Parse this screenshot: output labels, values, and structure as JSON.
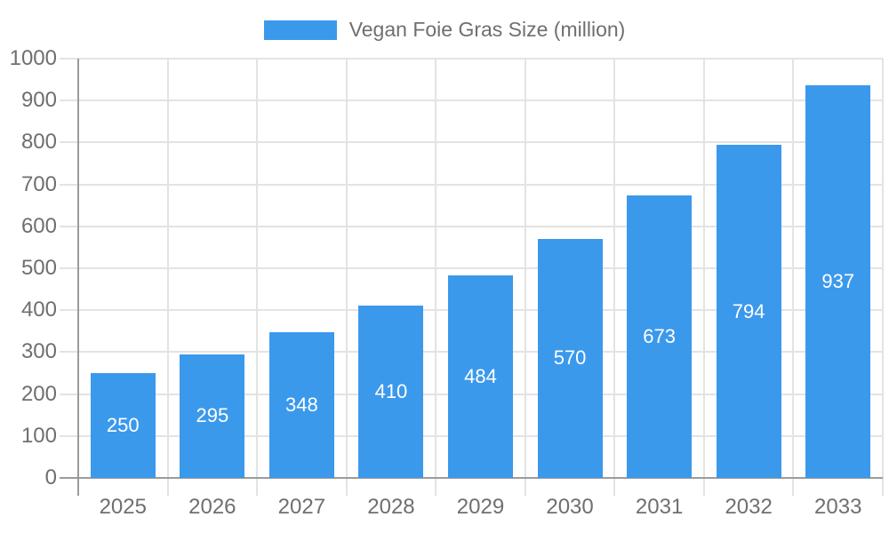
{
  "chart_data": {
    "type": "bar",
    "title": "Vegan Foie Gras Size (million)",
    "categories": [
      "2025",
      "2026",
      "2027",
      "2028",
      "2029",
      "2030",
      "2031",
      "2032",
      "2033"
    ],
    "values": [
      250,
      295,
      348,
      410,
      484,
      570,
      673,
      794,
      937
    ],
    "xlabel": "",
    "ylabel": "",
    "ylim": [
      0,
      1000
    ],
    "y_tick_step": 100,
    "y_tick_labels": [
      "0",
      "100",
      "200",
      "300",
      "400",
      "500",
      "600",
      "700",
      "800",
      "900",
      "1000"
    ],
    "grid": true,
    "legend_position": "top",
    "value_labels": "centered-inside-bars"
  },
  "colors": {
    "bar": "#3b99ec",
    "value_label": "#ffffff",
    "axis_line": "#9b9b9b",
    "gridline": "#e3e3e3",
    "tick_text": "#6f6f6f",
    "legend_text": "#6f6f6f",
    "background": "#ffffff"
  }
}
